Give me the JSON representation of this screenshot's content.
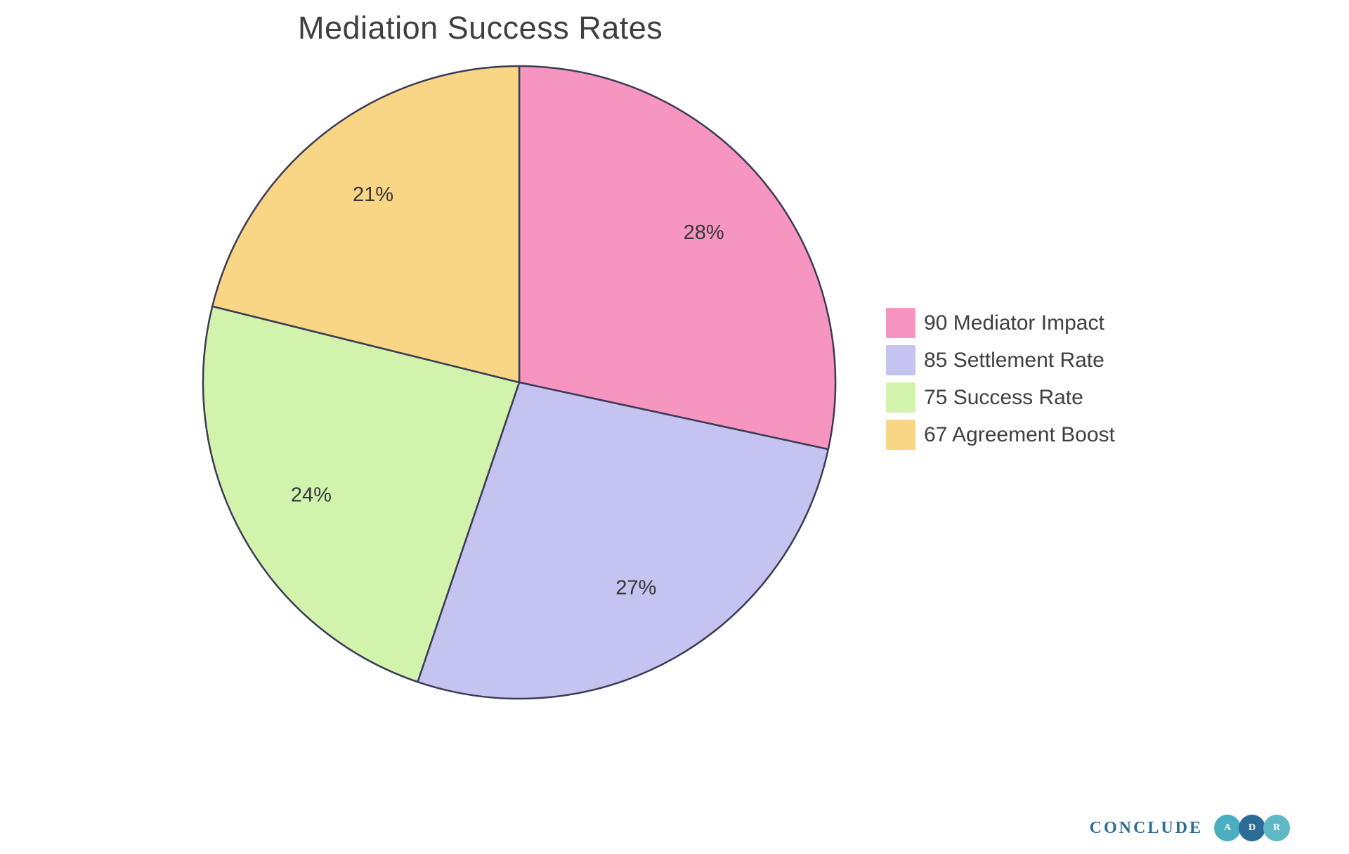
{
  "chart_data": {
    "type": "pie",
    "title": "Mediation Success Rates",
    "direction": "clockwise",
    "start_angle_deg": 0,
    "legend_position": "right",
    "stroke_color": "#3b3b55",
    "slices": [
      {
        "label": "90 Mediator Impact",
        "value": 90,
        "percent": "28%",
        "color": "#F795C1"
      },
      {
        "label": "85 Settlement Rate",
        "value": 85,
        "percent": "27%",
        "color": "#C5C3F0"
      },
      {
        "label": "75 Success Rate",
        "value": 75,
        "percent": "24%",
        "color": "#D2F3AC"
      },
      {
        "label": "67 Agreement Boost",
        "value": 67,
        "percent": "21%",
        "color": "#F9D586"
      }
    ]
  },
  "branding": {
    "wordmark": "CONCLUDE",
    "wordmark_color": "#2b6f96",
    "badges": [
      {
        "letter": "A",
        "color": "#4badc0"
      },
      {
        "letter": "D",
        "color": "#2b6d96"
      },
      {
        "letter": "R",
        "color": "#5fb8c6"
      }
    ]
  }
}
